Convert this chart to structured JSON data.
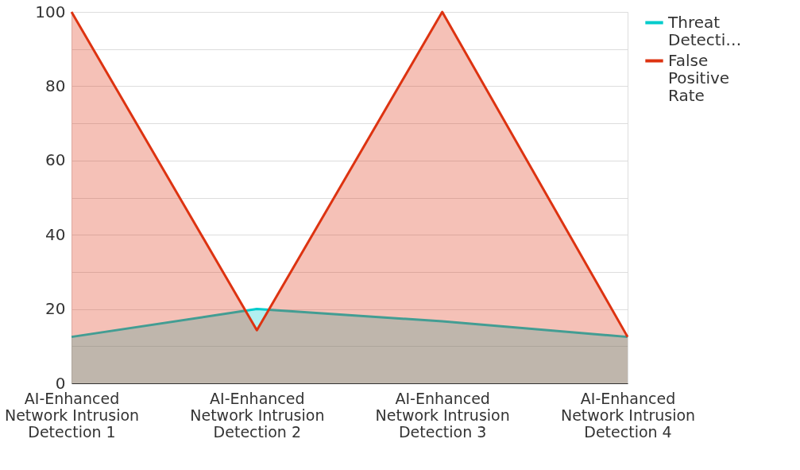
{
  "chart_data": {
    "type": "area",
    "categories": [
      "AI-Enhanced Network Intrusion Detection 1",
      "AI-Enhanced Network Intrusion Detection 2",
      "AI-Enhanced Network Intrusion Detection 3",
      "AI-Enhanced Network Intrusion Detection 4"
    ],
    "series": [
      {
        "name": "Threat Detecti…",
        "color": "#00cccc",
        "values": [
          12.5,
          20,
          16.7,
          12.5
        ]
      },
      {
        "name": "False Positive Rate",
        "color": "#dd3311",
        "values": [
          100,
          14.3,
          100,
          12.5
        ]
      }
    ],
    "ylim": [
      0,
      100
    ],
    "yticks": [
      0,
      {
        "value": 10,
        "label": null
      },
      20,
      {
        "value": 30,
        "label": null
      },
      40,
      {
        "value": 50,
        "label": null
      },
      60,
      {
        "value": 70,
        "label": null
      },
      80,
      {
        "value": 90,
        "label": null
      },
      100
    ],
    "grid": "y",
    "legend": "top right"
  }
}
